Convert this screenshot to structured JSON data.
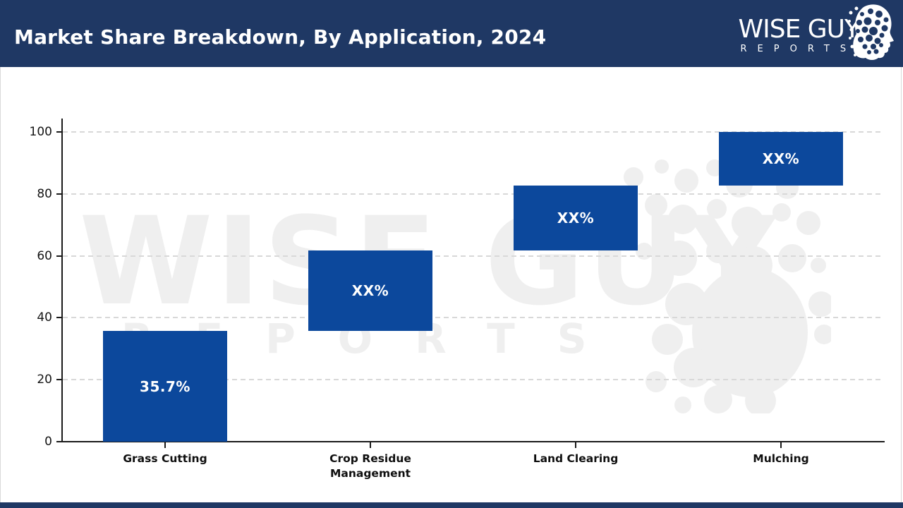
{
  "header": {
    "title": "Market Share Breakdown, By Application, 2024",
    "logo": {
      "line1": "WISE GUY",
      "line2": "REPORTS"
    }
  },
  "watermark": {
    "line1": "WISE GUY",
    "line2": "REPORTS"
  },
  "chart_data": {
    "type": "bar",
    "subtype": "waterfall",
    "title": "Market Share Breakdown, By Application, 2024",
    "categories": [
      "Grass Cutting",
      "Crop Residue Management",
      "Land Clearing",
      "Mulching"
    ],
    "segments": [
      {
        "category": "Grass Cutting",
        "start": 0,
        "end": 35.7,
        "label": "35.7%"
      },
      {
        "category": "Crop Residue Management",
        "start": 35.7,
        "end": 61.7,
        "label": "XX%"
      },
      {
        "category": "Land Clearing",
        "start": 61.7,
        "end": 82.6,
        "label": "XX%"
      },
      {
        "category": "Mulching",
        "start": 82.6,
        "end": 100,
        "label": "XX%"
      }
    ],
    "ylim": [
      0,
      100
    ],
    "yticks": [
      0,
      20,
      40,
      60,
      80,
      100
    ],
    "grid": "horizontal-dashed",
    "legend": "none"
  },
  "colors": {
    "header_bg": "#1f3864",
    "footer_bg": "#1f3864",
    "bar": "#0c489c",
    "bar_label": "#ffffff",
    "grid": "#d8d8d8",
    "axis": "#1a1a1a",
    "watermark": "#efefef"
  }
}
